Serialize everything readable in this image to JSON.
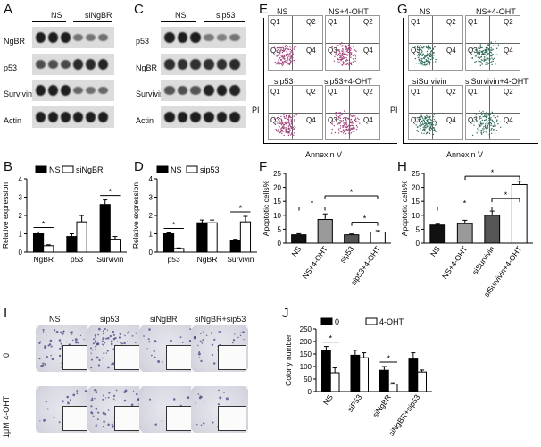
{
  "panels": {
    "A": {
      "letter": "A",
      "columns": [
        "NS",
        "siNgBR"
      ],
      "rows": [
        "NgBR",
        "p53",
        "Survivin",
        "Actin"
      ]
    },
    "C": {
      "letter": "C",
      "columns": [
        "NS",
        "sip53"
      ],
      "rows": [
        "p53",
        "NgBR",
        "Survivin",
        "Actin"
      ]
    },
    "E": {
      "letter": "E",
      "plot_titles": [
        "NS",
        "NS+4-OHT",
        "sip53",
        "sip53+4-OHT"
      ],
      "quadrants": [
        "Q1",
        "Q2",
        "Q3",
        "Q4"
      ],
      "ylabel": "PI",
      "xlabel": "Annexin V",
      "dot_color": "#a0407a"
    },
    "G": {
      "letter": "G",
      "plot_titles": [
        "NS",
        "NS+4-OHT",
        "siSurvivin",
        "siSurvivin+4-OHT"
      ],
      "quadrants": [
        "Q1",
        "Q2",
        "Q3",
        "Q4"
      ],
      "ylabel": "PI",
      "xlabel": "Annexin V",
      "dot_color": "#2e6b5a"
    },
    "I": {
      "letter": "I",
      "columns": [
        "NS",
        "sip53",
        "siNgBR",
        "siNgBR+sip53"
      ],
      "rows": [
        "0",
        "1μM 4-OHT"
      ]
    }
  },
  "chart_data": [
    {
      "panel": "B",
      "type": "bar",
      "categories": [
        "NgBR",
        "p53",
        "Survivin"
      ],
      "series": [
        {
          "name": "NS",
          "values": [
            1.0,
            0.85,
            2.6
          ],
          "errors": [
            0.1,
            0.15,
            0.25
          ]
        },
        {
          "name": "siNgBR",
          "values": [
            0.35,
            1.65,
            0.7
          ],
          "errors": [
            0.05,
            0.35,
            0.15
          ]
        }
      ],
      "ylabel": "Relative expression",
      "ylim": [
        0,
        4
      ],
      "yticks": [
        0,
        1,
        2,
        3,
        4
      ],
      "significance": [
        "*",
        "",
        "*"
      ]
    },
    {
      "panel": "D",
      "type": "bar",
      "categories": [
        "p53",
        "NgBR",
        "Survivin"
      ],
      "series": [
        {
          "name": "NS",
          "values": [
            1.0,
            1.6,
            0.65
          ],
          "errors": [
            0.05,
            0.15,
            0.05
          ]
        },
        {
          "name": "sip53",
          "values": [
            0.2,
            1.6,
            1.65
          ],
          "errors": [
            0.03,
            0.15,
            0.3
          ]
        }
      ],
      "ylabel": "Relative expression",
      "ylim": [
        0,
        4
      ],
      "yticks": [
        0,
        1,
        2,
        3,
        4
      ],
      "significance": [
        "*",
        "",
        "*"
      ]
    },
    {
      "panel": "F",
      "type": "bar",
      "categories": [
        "NS",
        "NS+4-OHT",
        "sip53",
        "sip53+4-OHT"
      ],
      "values": [
        3.0,
        8.5,
        3.0,
        4.0
      ],
      "errors": [
        0.4,
        2.0,
        0.3,
        0.5
      ],
      "colors": [
        "#111111",
        "#9a9a9a",
        "#555555",
        "#ffffff"
      ],
      "ylabel": "Apoptotic cells%",
      "ylim": [
        0,
        25
      ],
      "yticks": [
        0,
        5,
        10,
        15,
        20,
        25
      ]
    },
    {
      "panel": "H",
      "type": "bar",
      "categories": [
        "NS",
        "NS+4-OHT",
        "siSurvivin",
        "siSurvivin+4-OHT"
      ],
      "values": [
        6.5,
        7.0,
        10.0,
        21.0
      ],
      "errors": [
        0.3,
        1.2,
        1.5,
        1.2
      ],
      "colors": [
        "#111111",
        "#9a9a9a",
        "#555555",
        "#ffffff"
      ],
      "ylabel": "Apoptotic cells%",
      "ylim": [
        0,
        25
      ],
      "yticks": [
        0,
        5,
        10,
        15,
        20,
        25
      ]
    },
    {
      "panel": "J",
      "type": "bar",
      "categories": [
        "NS",
        "siP53",
        "siNgBR",
        "siNgBR+sip53"
      ],
      "series": [
        {
          "name": "0",
          "values": [
            165,
            145,
            85,
            130
          ],
          "errors": [
            15,
            20,
            15,
            25
          ]
        },
        {
          "name": "4-OHT",
          "values": [
            75,
            135,
            30,
            78
          ],
          "errors": [
            20,
            20,
            5,
            8
          ]
        }
      ],
      "ylabel": "Colony number",
      "ylim": [
        0,
        250
      ],
      "yticks": [
        0,
        50,
        100,
        150,
        200,
        250
      ],
      "significance": [
        "*",
        "",
        "*",
        ""
      ]
    }
  ]
}
